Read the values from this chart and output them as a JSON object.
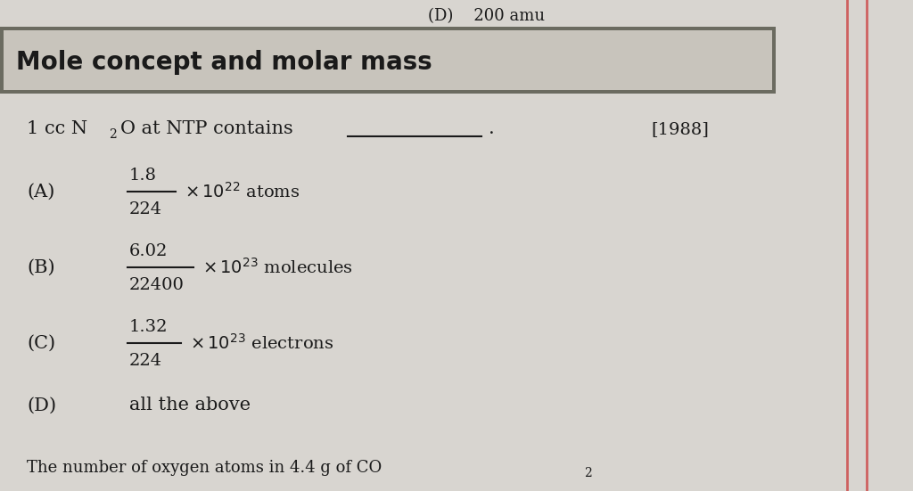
{
  "bg_color": "#d8d5d0",
  "header_bg_outer": "#6b6b60",
  "header_bg_inner": "#c8c4bc",
  "header_text": "Mole concept and molar mass",
  "header_text_color": "#1a1a1a",
  "text_color": "#1a1a1a",
  "line_color": "#1a1a1a",
  "red_line_color": "#cc4444",
  "top_partial_right": "(D)   200 amu",
  "question_pre": "1 cc N",
  "question_sub2": "2",
  "question_post": "O at NTP contains",
  "question_year": "[1988]",
  "opt_A_num": "1.8",
  "opt_A_den": "224",
  "opt_A_pow": "22",
  "opt_A_suf": "atoms",
  "opt_B_num": "6.02",
  "opt_B_den": "22400",
  "opt_B_pow": "23",
  "opt_B_suf": "molecules",
  "opt_C_num": "1.32",
  "opt_C_den": "224",
  "opt_C_pow": "23",
  "opt_C_suf": "electrons",
  "opt_D_text": "all the above",
  "bottom_text": "The number of oxygen atoms in 4.4 g of CO",
  "bottom_sub": "2"
}
